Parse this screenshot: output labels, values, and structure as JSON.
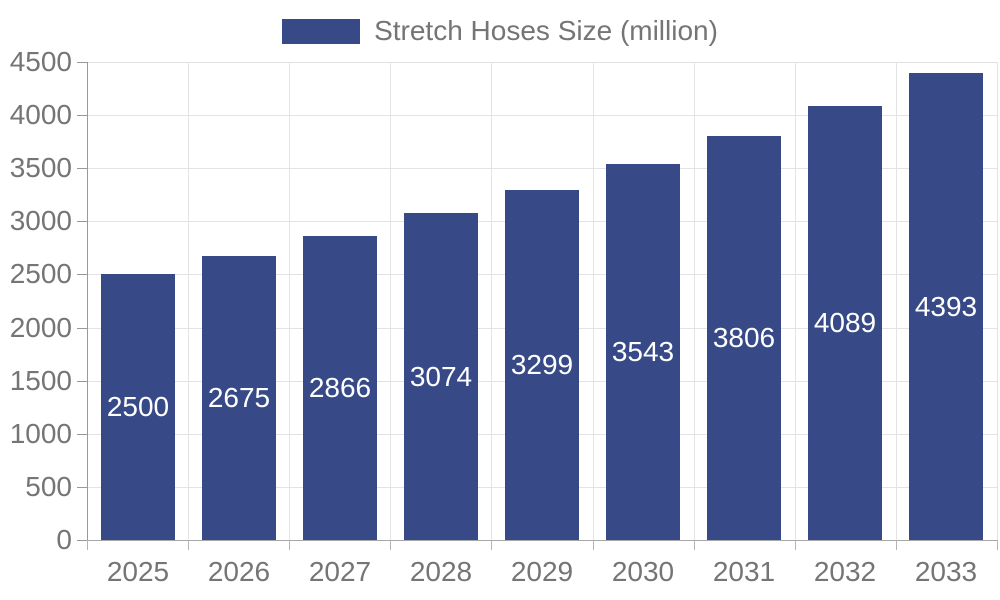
{
  "legend": {
    "label": "Stretch Hoses Size (million)"
  },
  "chart_data": {
    "type": "bar",
    "title": "",
    "series_name": "Stretch Hoses Size (million)",
    "categories": [
      "2025",
      "2026",
      "2027",
      "2028",
      "2029",
      "2030",
      "2031",
      "2032",
      "2033"
    ],
    "values": [
      2500,
      2675,
      2866,
      3074,
      3299,
      3543,
      3806,
      4089,
      4393
    ],
    "value_labels": [
      "2500",
      "2675",
      "2866",
      "3074",
      "3299",
      "3543",
      "3806",
      "4089",
      "4393"
    ],
    "xlabel": "",
    "ylabel": "",
    "ylim": [
      0,
      4500
    ],
    "ytick_step": 500,
    "ytick_labels": [
      "0",
      "500",
      "1000",
      "1500",
      "2000",
      "2500",
      "3000",
      "3500",
      "4000",
      "4500"
    ],
    "grid": true,
    "legend_position": "top-center",
    "bar_color": "#374a87",
    "value_label_color": "#ffffff",
    "axis_text_color": "#757575",
    "gridline_color": "#e3e3e6",
    "axis_line_color": "#999999",
    "background_color": "#ffffff"
  }
}
